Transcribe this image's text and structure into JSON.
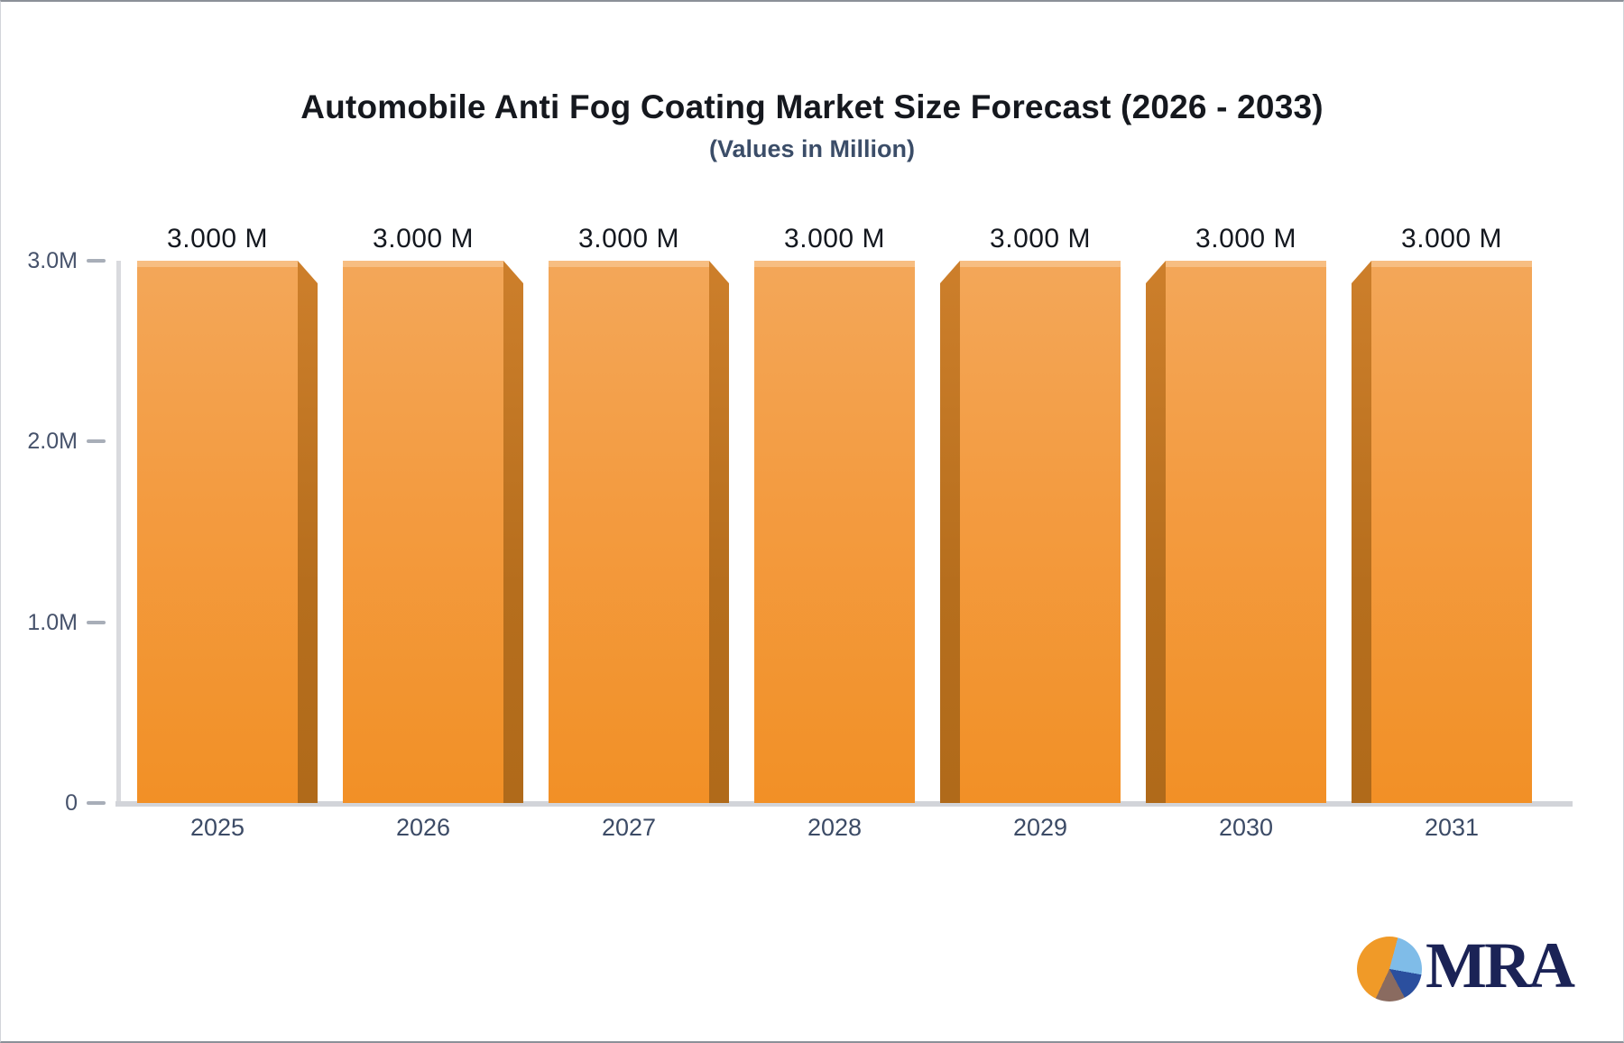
{
  "chart_data": {
    "type": "bar",
    "title": "Automobile Anti Fog Coating Market Size Forecast (2026 - 2033)",
    "subtitle": "(Values in Million)",
    "categories": [
      "2025",
      "2026",
      "2027",
      "2028",
      "2029",
      "2030",
      "2031"
    ],
    "values": [
      3.0,
      3.0,
      3.0,
      3.0,
      3.0,
      3.0,
      3.0
    ],
    "value_labels": [
      "3.000 M",
      "3.000 M",
      "3.000 M",
      "3.000 M",
      "3.000 M",
      "3.000 M",
      "3.000 M"
    ],
    "xlabel": "",
    "ylabel": "",
    "ylim": [
      0,
      3.0
    ],
    "yticks": [
      {
        "value": 0,
        "label": "0"
      },
      {
        "value": 1.0,
        "label": "1.0M"
      },
      {
        "value": 2.0,
        "label": "2.0M"
      },
      {
        "value": 3.0,
        "label": "3.0M"
      }
    ],
    "grid": false,
    "legend": "none",
    "colors": {
      "bar_face_top": "#f3a759",
      "bar_face_bottom": "#f29026",
      "bar_side": "#b66e1d",
      "axis_line": "#d9dade",
      "tick_text": "#46526b",
      "value_text": "#14181f",
      "title_text": "#15181e",
      "subtitle_text": "#3b4d68"
    }
  },
  "logo": {
    "text": "MRA",
    "pie_colors": [
      "#f09a28",
      "#7fbce8",
      "#2b4f9e",
      "#8a6b60"
    ]
  }
}
